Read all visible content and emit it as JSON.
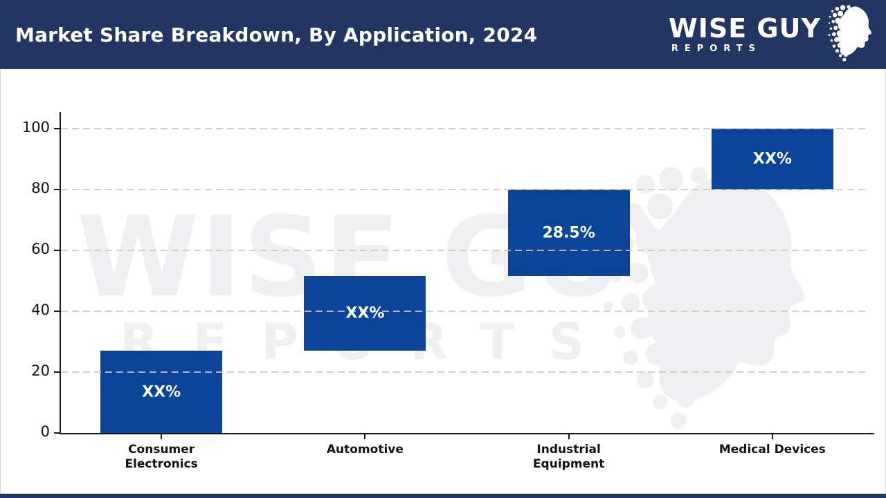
{
  "header": {
    "title": "Market Share Breakdown, By Application, 2024",
    "logo": {
      "brand": "WISE GUY",
      "sub": "REPORTS"
    }
  },
  "watermark": {
    "line1": "WISE GUY",
    "line2": "REPORTS"
  },
  "colors": {
    "header_bg": "#213663",
    "bar": "#0b4499",
    "bar_label_text": "#ffffff",
    "gridline": "#c9c9c9",
    "axis": "#1a1a1a",
    "watermark": "#f0f0f3"
  },
  "chart_data": {
    "type": "bar",
    "subtype": "waterfall",
    "title": "Market Share Breakdown, By Application, 2024",
    "categories": [
      "Consumer Electronics",
      "Automotive",
      "Industrial Equipment",
      "Medical Devices"
    ],
    "category_lines": [
      [
        "Consumer",
        "Electronics"
      ],
      [
        "Automotive"
      ],
      [
        "Industrial",
        "Equipment"
      ],
      [
        "Medical Devices"
      ]
    ],
    "segments": [
      {
        "category": "Consumer Electronics",
        "start": 0,
        "end": 27,
        "value": 27,
        "label": "XX%"
      },
      {
        "category": "Automotive",
        "start": 27,
        "end": 51.5,
        "value": 24.5,
        "label": "XX%"
      },
      {
        "category": "Industrial Equipment",
        "start": 51.5,
        "end": 80,
        "value": 28.5,
        "label": "28.5%"
      },
      {
        "category": "Medical Devices",
        "start": 80,
        "end": 100,
        "value": 20,
        "label": "XX%"
      }
    ],
    "ylim": [
      0,
      100
    ],
    "yticks": [
      0,
      20,
      40,
      60,
      80,
      100
    ],
    "grid": "horizontal-dashed",
    "legend": "none"
  }
}
